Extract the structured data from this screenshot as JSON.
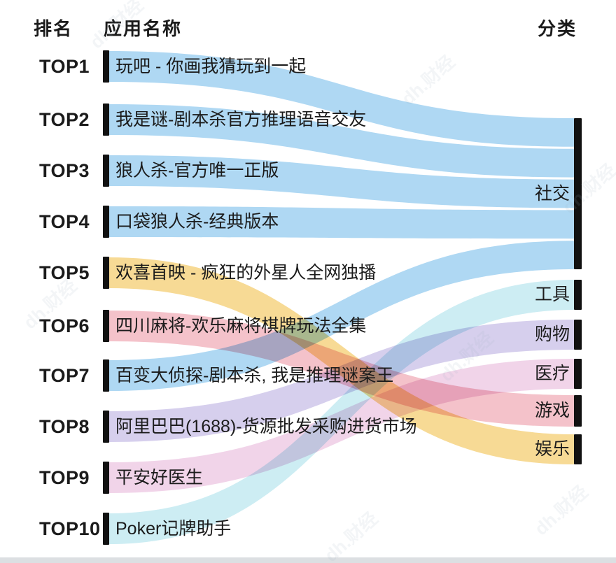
{
  "header": {
    "rank": "排名",
    "app_name": "应用名称",
    "category": "分类"
  },
  "rows": [
    {
      "rank": "TOP1",
      "app": "玩吧 - 你画我猜玩到一起",
      "category": "社交"
    },
    {
      "rank": "TOP2",
      "app": "我是谜-剧本杀官方推理语音交友",
      "category": "社交"
    },
    {
      "rank": "TOP3",
      "app": "狼人杀-官方唯一正版",
      "category": "社交"
    },
    {
      "rank": "TOP4",
      "app": "口袋狼人杀-经典版本",
      "category": "社交"
    },
    {
      "rank": "TOP5",
      "app": "欢喜首映 - 疯狂的外星人全网独播",
      "category": "娱乐"
    },
    {
      "rank": "TOP6",
      "app": "四川麻将-欢乐麻将棋牌玩法全集",
      "category": "游戏"
    },
    {
      "rank": "TOP7",
      "app": "百变大侦探-剧本杀, 我是推理谜案王",
      "category": "社交"
    },
    {
      "rank": "TOP8",
      "app": "阿里巴巴(1688)-货源批发采购进货市场",
      "category": "购物"
    },
    {
      "rank": "TOP9",
      "app": "平安好医生",
      "category": "医疗"
    },
    {
      "rank": "TOP10",
      "app": "Poker记牌助手",
      "category": "工具"
    }
  ],
  "categories": [
    {
      "label": "社交",
      "color": "#A8D5F2"
    },
    {
      "label": "工具",
      "color": "#C9ECF2"
    },
    {
      "label": "购物",
      "color": "#D3CBEB"
    },
    {
      "label": "医疗",
      "color": "#F0D0E7"
    },
    {
      "label": "游戏",
      "color": "#F3BDC5"
    },
    {
      "label": "娱乐",
      "color": "#F6D78C"
    }
  ],
  "node_color": "#111111",
  "watermark": "dh.财经",
  "chart_data": {
    "type": "sankey",
    "columns": [
      "排名",
      "应用名称",
      "分类"
    ],
    "links": [
      {
        "rank": "TOP1",
        "source": "玩吧 - 你画我猜玩到一起",
        "target": "社交",
        "value": 1
      },
      {
        "rank": "TOP2",
        "source": "我是谜-剧本杀官方推理语音交友",
        "target": "社交",
        "value": 1
      },
      {
        "rank": "TOP3",
        "source": "狼人杀-官方唯一正版",
        "target": "社交",
        "value": 1
      },
      {
        "rank": "TOP4",
        "source": "口袋狼人杀-经典版本",
        "target": "社交",
        "value": 1
      },
      {
        "rank": "TOP5",
        "source": "欢喜首映 - 疯狂的外星人全网独播",
        "target": "娱乐",
        "value": 1
      },
      {
        "rank": "TOP6",
        "source": "四川麻将-欢乐麻将棋牌玩法全集",
        "target": "游戏",
        "value": 1
      },
      {
        "rank": "TOP7",
        "source": "百变大侦探-剧本杀, 我是推理谜案王",
        "target": "社交",
        "value": 1
      },
      {
        "rank": "TOP8",
        "source": "阿里巴巴(1688)-货源批发采购进货市场",
        "target": "购物",
        "value": 1
      },
      {
        "rank": "TOP9",
        "source": "平安好医生",
        "target": "医疗",
        "value": 1
      },
      {
        "rank": "TOP10",
        "source": "Poker记牌助手",
        "target": "工具",
        "value": 1
      }
    ],
    "category_totals": {
      "社交": 5,
      "工具": 1,
      "购物": 1,
      "医疗": 1,
      "游戏": 1,
      "娱乐": 1
    },
    "legend": "none",
    "grid": false
  }
}
